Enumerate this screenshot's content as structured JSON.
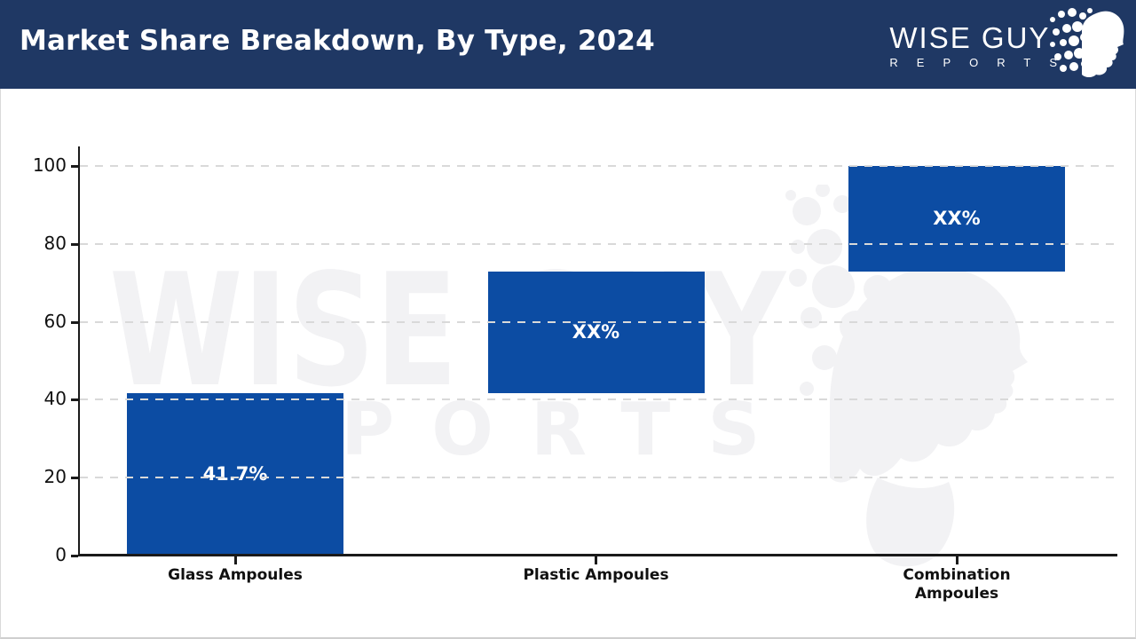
{
  "header": {
    "title": "Market Share Breakdown, By Type, 2024",
    "logo": {
      "wordmark": "WISE GUY",
      "subtext": "REPORTS"
    }
  },
  "watermark": {
    "line1": "WISE GUY",
    "line2": "REPORTS"
  },
  "chart_data": {
    "type": "bar",
    "subtype": "waterfall",
    "title": "Market Share Breakdown, By Type, 2024",
    "categories": [
      "Glass Ampoules",
      "Plastic Ampoules",
      "Combination Ampoules"
    ],
    "categories_display": [
      "Glass Ampoules",
      "Plastic Ampoules",
      "Combination\nAmpoules"
    ],
    "bars": [
      {
        "category": "Glass Ampoules",
        "start": 0,
        "end": 41.7,
        "label": "41.7%"
      },
      {
        "category": "Plastic Ampoules",
        "start": 41.7,
        "end": 72.9,
        "label": "XX%"
      },
      {
        "category": "Combination Ampoules",
        "start": 72.9,
        "end": 100,
        "label": "XX%"
      }
    ],
    "yticks": [
      0,
      20,
      40,
      60,
      80,
      100
    ],
    "ylim": [
      0,
      105
    ],
    "grid": "dashed-horizontal",
    "legend": "none",
    "bar_color": "#0C4CA3",
    "bar_label_color": "#FFFFFF",
    "axis_color": "#1a1a1a",
    "header_color": "#1F3864"
  }
}
